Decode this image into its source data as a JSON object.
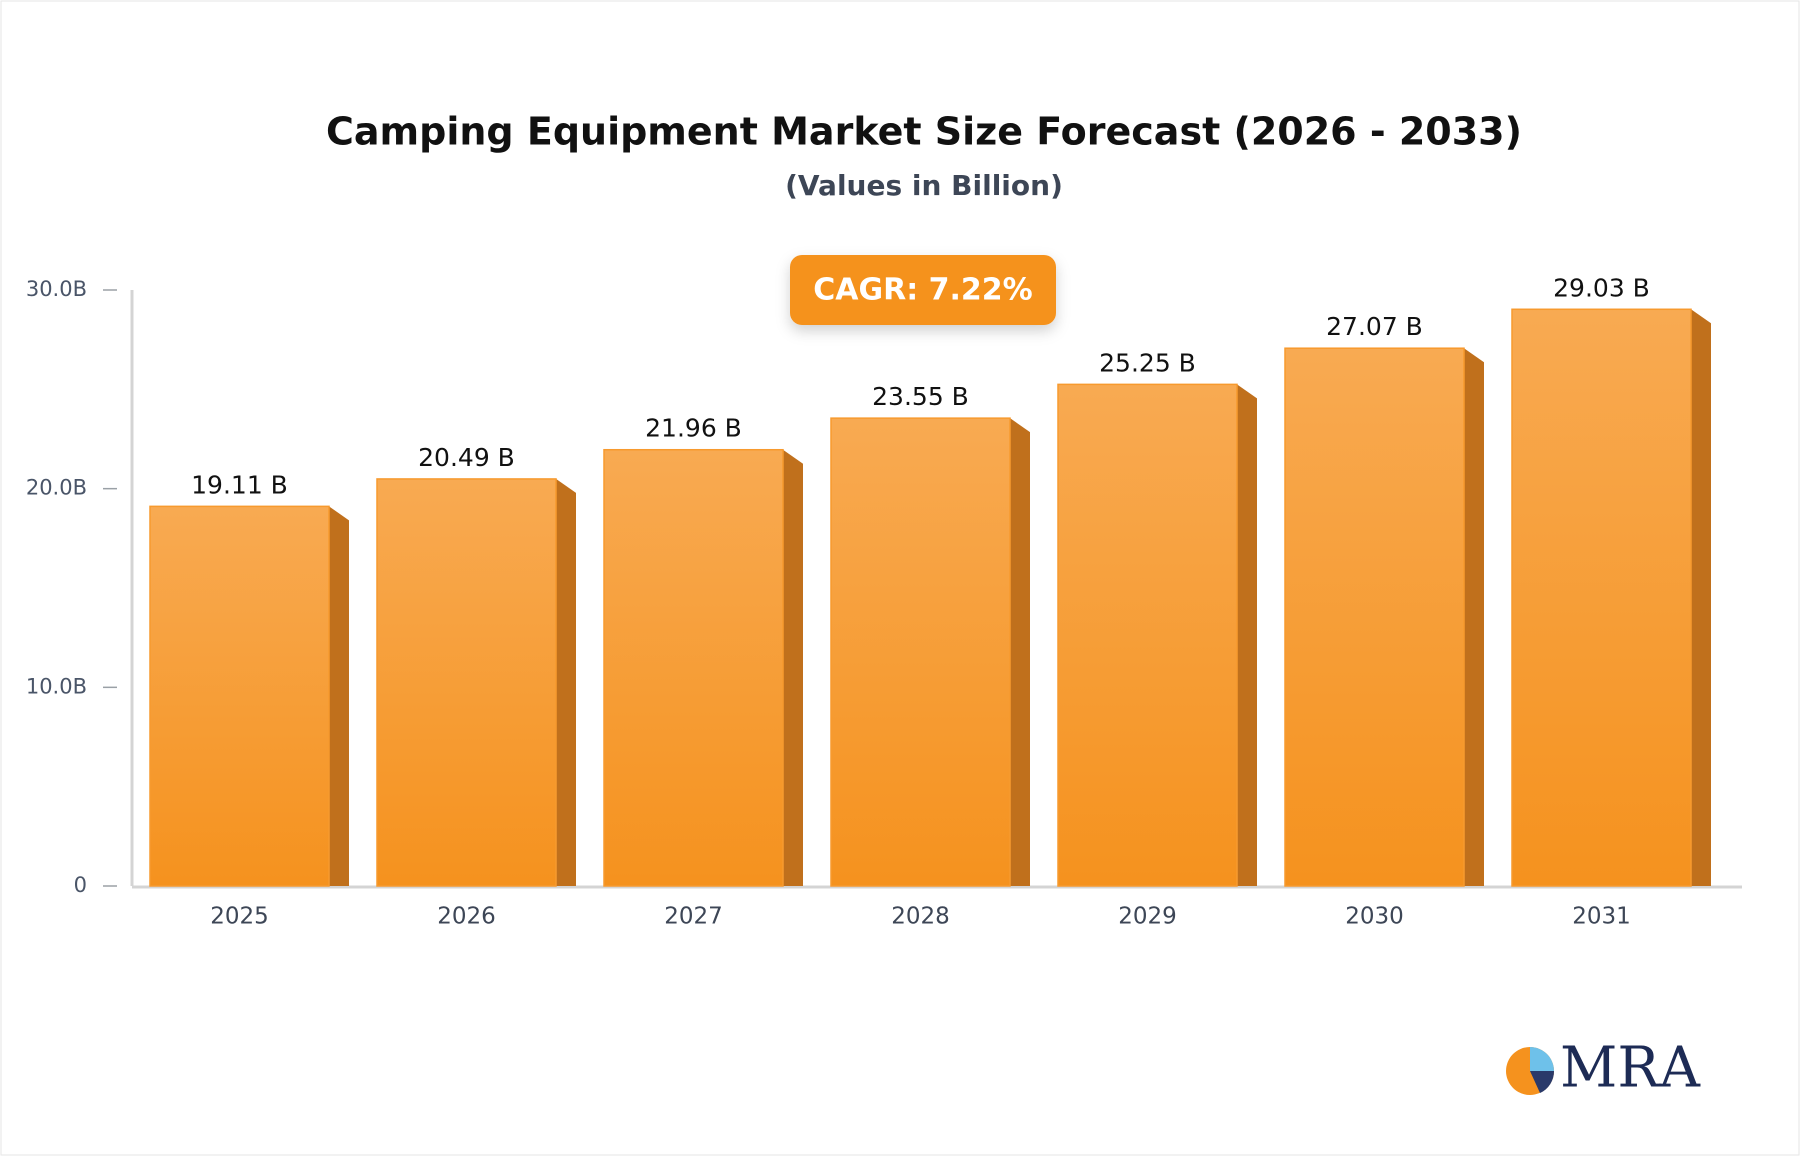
{
  "chart_data": {
    "type": "bar",
    "title": "Camping Equipment Market Size Forecast (2026 - 2033)",
    "subtitle": "(Values in Billion)",
    "annotation": "CAGR: 7.22%",
    "categories": [
      "2025",
      "2026",
      "2027",
      "2028",
      "2029",
      "2030",
      "2031"
    ],
    "values": [
      19.11,
      20.49,
      21.96,
      23.55,
      25.25,
      27.07,
      29.03
    ],
    "value_labels": [
      "19.11 B",
      "20.49 B",
      "21.96 B",
      "23.55 B",
      "25.25 B",
      "27.07 B",
      "29.03 B"
    ],
    "color": "#f79a2e",
    "ylim": [
      0,
      30
    ],
    "yticks": [
      0,
      {
        "value": 10,
        "label": "10.0B"
      },
      {
        "value": 20,
        "label": "20.0B"
      },
      {
        "value": 30,
        "label": "30.0B"
      }
    ],
    "grid": false
  },
  "logo": "MRA"
}
